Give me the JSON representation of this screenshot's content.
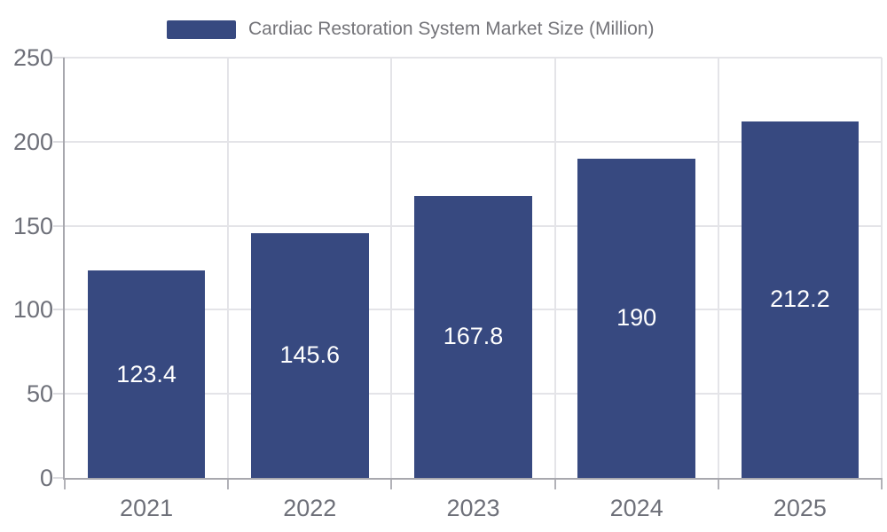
{
  "chart_data": {
    "type": "bar",
    "legend": [
      "Cardiac Restoration System Market Size (Million)"
    ],
    "legend_position": "top-center",
    "categories": [
      "2021",
      "2022",
      "2023",
      "2024",
      "2025"
    ],
    "values": [
      123.4,
      145.6,
      167.8,
      190,
      212.2
    ],
    "value_labels": [
      "123.4",
      "145.6",
      "167.8",
      "190",
      "212.2"
    ],
    "series": [
      {
        "name": "Cardiac Restoration System Market Size (Million)",
        "values": [
          123.4,
          145.6,
          167.8,
          190,
          212.2
        ]
      }
    ],
    "xlabel": "",
    "ylabel": "",
    "ylim": [
      0,
      250
    ],
    "yticks": [
      0,
      50,
      100,
      150,
      200,
      250
    ],
    "grid": true,
    "colors": {
      "bar": "#374980",
      "value_label": "#ffffff",
      "grid": "#e4e4e8",
      "axis": "#a8a8ae",
      "x_tick": "#b2b2b8",
      "y_tick": "#dcdce0",
      "tick_label": "#6e7079",
      "legend_label": "#747479",
      "background": "#ffffff"
    }
  }
}
